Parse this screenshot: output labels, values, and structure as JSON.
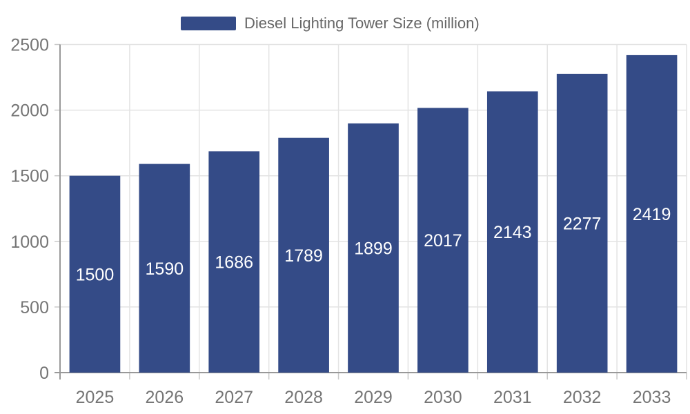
{
  "chart_data": {
    "type": "bar",
    "title": "Diesel Lighting Tower Size (million)",
    "categories": [
      "2025",
      "2026",
      "2027",
      "2028",
      "2029",
      "2030",
      "2031",
      "2032",
      "2033"
    ],
    "values": [
      1500,
      1590,
      1686,
      1789,
      1899,
      2017,
      2143,
      2277,
      2419
    ],
    "xlabel": "",
    "ylabel": "",
    "ylim": [
      0,
      2500
    ],
    "yticks": [
      0,
      500,
      1000,
      1500,
      2000,
      2500
    ],
    "grid": true,
    "legend_position": "top-center",
    "bar_color": "#344b87",
    "value_label_color": "#ffffff",
    "axis_text_color": "#757575",
    "legend_text_color": "#666666",
    "grid_color": "#e3e3e3",
    "tick_color": "#c9c9c9",
    "axis_line_color": "#999999",
    "background_color": "#ffffff"
  }
}
